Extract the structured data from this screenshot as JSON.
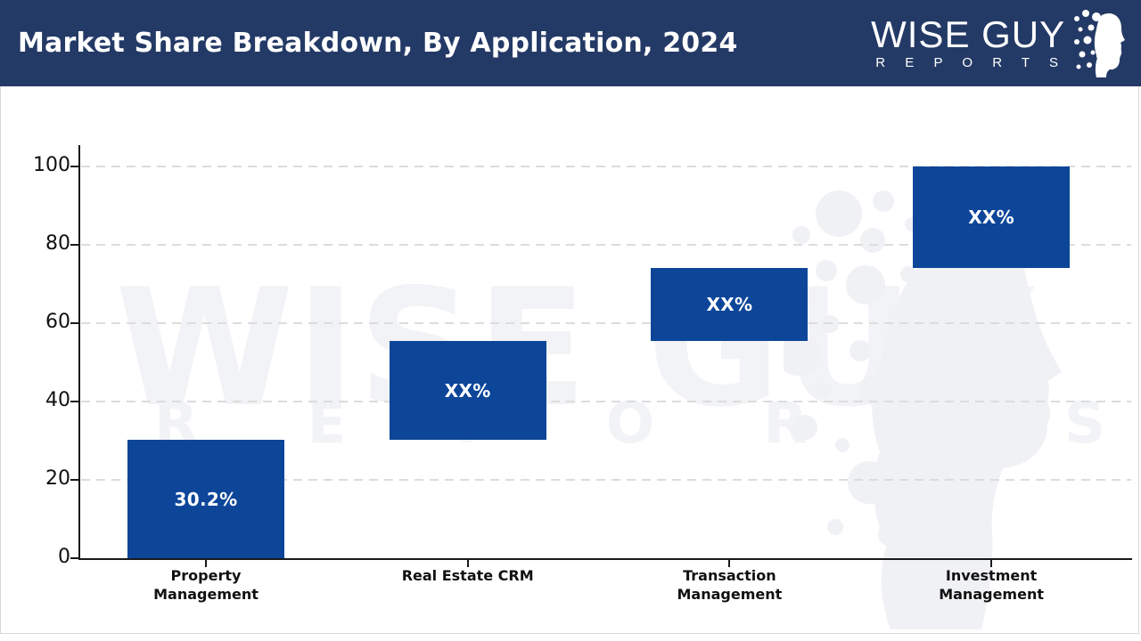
{
  "header": {
    "title": "Market Share Breakdown, By Application, 2024",
    "logo": {
      "name": "WISE GUY",
      "sub": "R E P O R T S"
    }
  },
  "watermark": {
    "line1": "WISE GUY",
    "line2": "R E P O R T S"
  },
  "colors": {
    "header_bg": "#243a66",
    "bar": "#0d4699",
    "axis": "#1a1a1a",
    "grid": "#dcdcdc",
    "watermark": "#f2f3f6",
    "label_text": "#ffffff"
  },
  "chart_data": {
    "type": "bar",
    "subtype": "waterfall",
    "title": "Market Share Breakdown, By Application, 2024",
    "unit": "%",
    "categories": [
      "Property Management",
      "Real Estate CRM",
      "Transaction Management",
      "Investment Management"
    ],
    "segments": [
      {
        "category": "Property Management",
        "start": 0,
        "end": 30.2,
        "label": "30.2%"
      },
      {
        "category": "Real Estate CRM",
        "start": 30.2,
        "end": 55.4,
        "label": "XX%"
      },
      {
        "category": "Transaction Management",
        "start": 55.4,
        "end": 74.0,
        "label": "XX%"
      },
      {
        "category": "Investment Management",
        "start": 74.0,
        "end": 100.0,
        "label": "XX%"
      }
    ],
    "yticks": [
      0,
      20,
      40,
      60,
      80,
      100
    ],
    "ylim": [
      0,
      104
    ],
    "grid": "horizontal-dashed",
    "legend": "none"
  }
}
